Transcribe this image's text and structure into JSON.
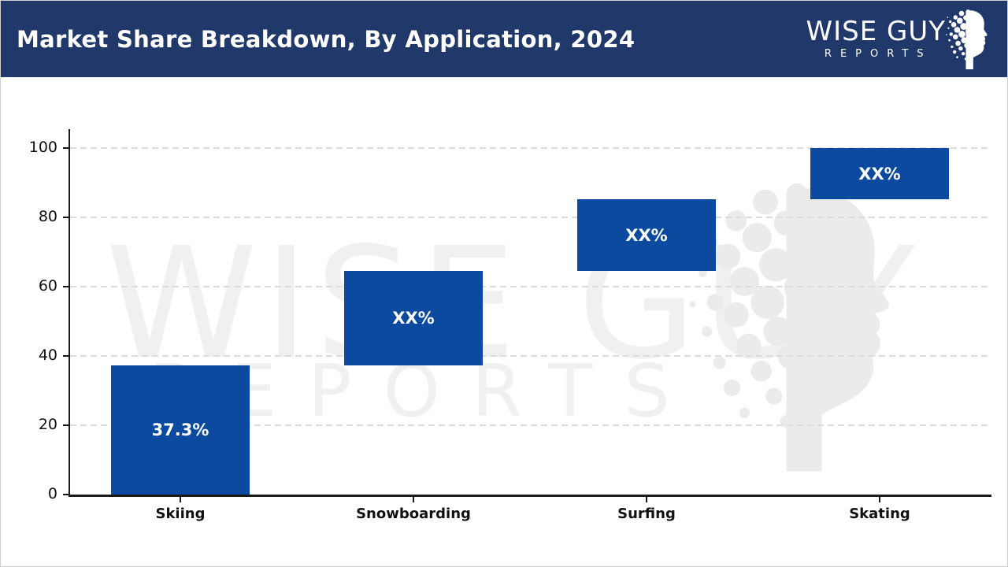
{
  "header": {
    "title": "Market Share Breakdown, By Application, 2024",
    "logo": {
      "line1": "WISE GUY",
      "line2": "REPORTS"
    }
  },
  "watermark": {
    "line1": "WISE GUY",
    "line2": "REPORTS"
  },
  "chart_data": {
    "type": "bar",
    "subtype": "floating-waterfall",
    "title": "Market Share Breakdown, By Application, 2024",
    "categories": [
      "Skiing",
      "Snowboarding",
      "Surfing",
      "Skating"
    ],
    "segments": [
      {
        "category": "Skiing",
        "start": 0,
        "end": 37.3,
        "label": "37.3%"
      },
      {
        "category": "Snowboarding",
        "start": 37.3,
        "end": 64.5,
        "label": "XX%"
      },
      {
        "category": "Surfing",
        "start": 64.5,
        "end": 85.2,
        "label": "XX%"
      },
      {
        "category": "Skating",
        "start": 85.2,
        "end": 100,
        "label": "XX%"
      }
    ],
    "ylim": [
      0,
      100
    ],
    "yticks": [
      0,
      20,
      40,
      60,
      80,
      100
    ],
    "xlabel": "",
    "ylabel": "",
    "grid": "horizontal-dashed",
    "legend": "none",
    "bar_color": "#0B4A9F",
    "value_label_color": "#FFFFFF"
  },
  "colors": {
    "header_bg": "#20386A",
    "header_text": "#FFFFFF",
    "bar_fill": "#0B4A9F",
    "axis": "#1A1A1A",
    "grid": "#DCDCDC",
    "tick_label": "#111111",
    "watermark_text": "#F0F0F0",
    "watermark_head": "#EBEBEB",
    "page_border": "#CFCFCF"
  }
}
